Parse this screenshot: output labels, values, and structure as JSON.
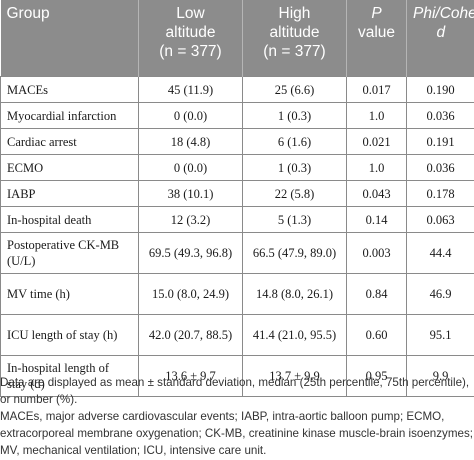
{
  "table": {
    "headers": [
      [
        "Group"
      ],
      [
        "Low",
        "altitude",
        "(n = 377)"
      ],
      [
        "High",
        "altitude",
        "(n = 377)"
      ],
      [
        "P",
        "value"
      ],
      [
        "Phi/Cohen",
        "d"
      ]
    ],
    "rows": [
      [
        "MACEs",
        "45 (11.9)",
        "25 (6.6)",
        "0.017",
        "0.190"
      ],
      [
        "Myocardial infarction",
        "0 (0.0)",
        "1 (0.3)",
        "1.0",
        "0.036"
      ],
      [
        "Cardiac arrest",
        "18 (4.8)",
        "6 (1.6)",
        "0.021",
        "0.191"
      ],
      [
        "ECMO",
        "0 (0.0)",
        "1 (0.3)",
        "1.0",
        "0.036"
      ],
      [
        "IABP",
        "38 (10.1)",
        "22 (5.8)",
        "0.043",
        "0.178"
      ],
      [
        "In-hospital death",
        "12 (3.2)",
        "5 (1.3)",
        "0.14",
        "0.063"
      ],
      [
        "Postoperative CK-MB (U/L)",
        "69.5 (49.3, 96.8)",
        "66.5 (47.9, 89.0)",
        "0.003",
        "44.4"
      ],
      [
        "MV time (h)",
        "15.0 (8.0, 24.9)",
        "14.8 (8.0, 26.1)",
        "0.84",
        "46.9"
      ],
      [
        "ICU length of stay (h)",
        "42.0 (20.7, 88.5)",
        "41.4 (21.0, 95.5)",
        "0.60",
        "95.1"
      ],
      [
        "In-hospital length of stay (d)",
        "13.6 ± 9.7",
        "13.7 ± 9.9",
        "0.95",
        "9.9"
      ]
    ]
  },
  "footnotes": [
    "Data are displayed as mean ± standard deviation, median (25th percentile, 75th percentile), or number (%).",
    "MACEs, major adverse cardiovascular events; IABP, intra-aortic balloon pump; ECMO, extracorporeal membrane oxygenation; CK-MB, creatinine kinase muscle-brain isoenzymes; MV, mechanical ventilation; ICU, intensive care unit."
  ]
}
